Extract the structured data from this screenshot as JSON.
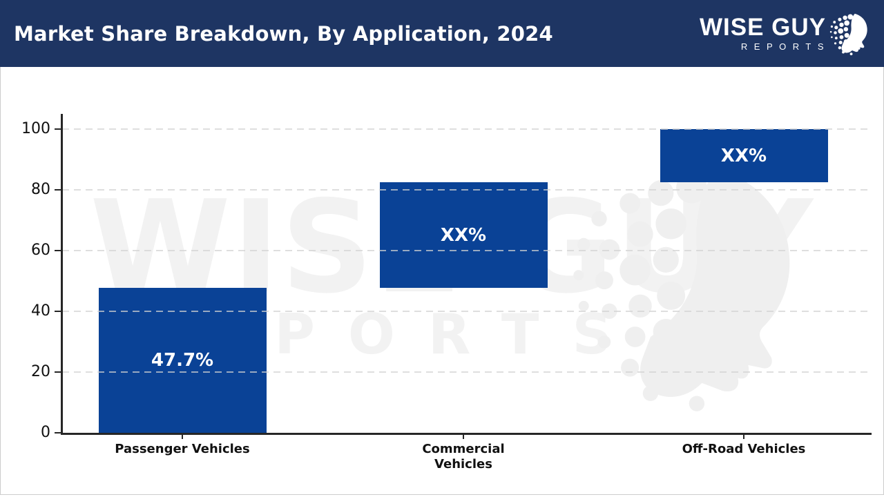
{
  "header": {
    "title": "Market Share Breakdown, By Application, 2024",
    "background_color": "#1e3563",
    "logo": {
      "line1": "WISE GUY",
      "line2": "REPORTS"
    }
  },
  "watermark": {
    "line1": "WISE GUY",
    "line2": "REPORTS",
    "color": "#f2f2f2"
  },
  "chart_data": {
    "type": "bar",
    "subtype": "floating-waterfall",
    "title": "Market Share Breakdown, By Application, 2024",
    "categories": [
      "Passenger Vehicles",
      "Commercial\nVehicles",
      "Off-Road Vehicles"
    ],
    "series": [
      {
        "name": "Passenger Vehicles",
        "start": 0,
        "end": 47.7,
        "label": "47.7%"
      },
      {
        "name": "Commercial Vehicles",
        "start": 47.7,
        "end": 82.5,
        "label": "XX%"
      },
      {
        "name": "Off-Road Vehicles",
        "start": 82.5,
        "end": 100,
        "label": "XX%"
      }
    ],
    "xlabel": "",
    "ylabel": "",
    "ylim": [
      0,
      100
    ],
    "yticks": [
      0,
      20,
      40,
      60,
      80,
      100
    ],
    "grid": "horizontal-dashed",
    "legend": "none",
    "bar_color": "#0a4296",
    "bar_label_color": "#ffffff"
  }
}
